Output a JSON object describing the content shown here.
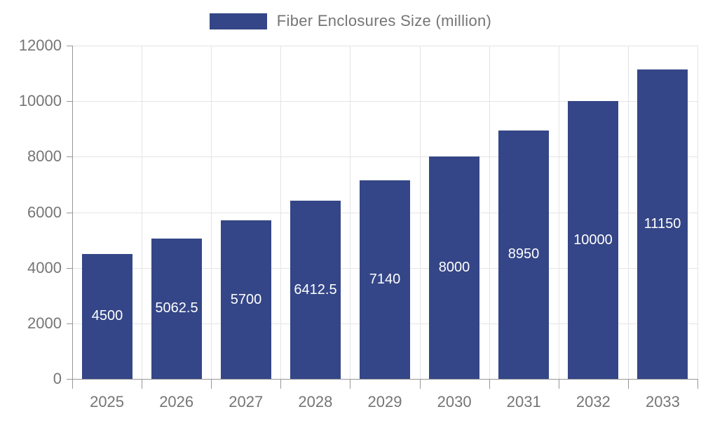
{
  "chart_data": {
    "type": "bar",
    "title": "Fiber Enclosures Size (million)",
    "legend": [
      "Fiber Enclosures Size (million)"
    ],
    "legend_position": "top-center",
    "categories": [
      "2025",
      "2026",
      "2027",
      "2028",
      "2029",
      "2030",
      "2031",
      "2032",
      "2033"
    ],
    "series": [
      {
        "name": "Fiber Enclosures Size (million)",
        "values": [
          4500,
          5062.5,
          5700,
          6412.5,
          7140,
          8000,
          8950,
          10000,
          11150
        ]
      }
    ],
    "xlabel": "",
    "ylabel": "",
    "ylim": [
      0,
      12000
    ],
    "yticks": [
      0,
      2000,
      4000,
      6000,
      8000,
      10000,
      12000
    ],
    "grid": true,
    "colors": {
      "bar": "#344687",
      "bar_value_label": "#ffffff",
      "gridline": "#e4e4e8",
      "axis": "#979797",
      "tick_label": "#757575",
      "legend_text": "#757575",
      "background": "#ffffff"
    }
  }
}
